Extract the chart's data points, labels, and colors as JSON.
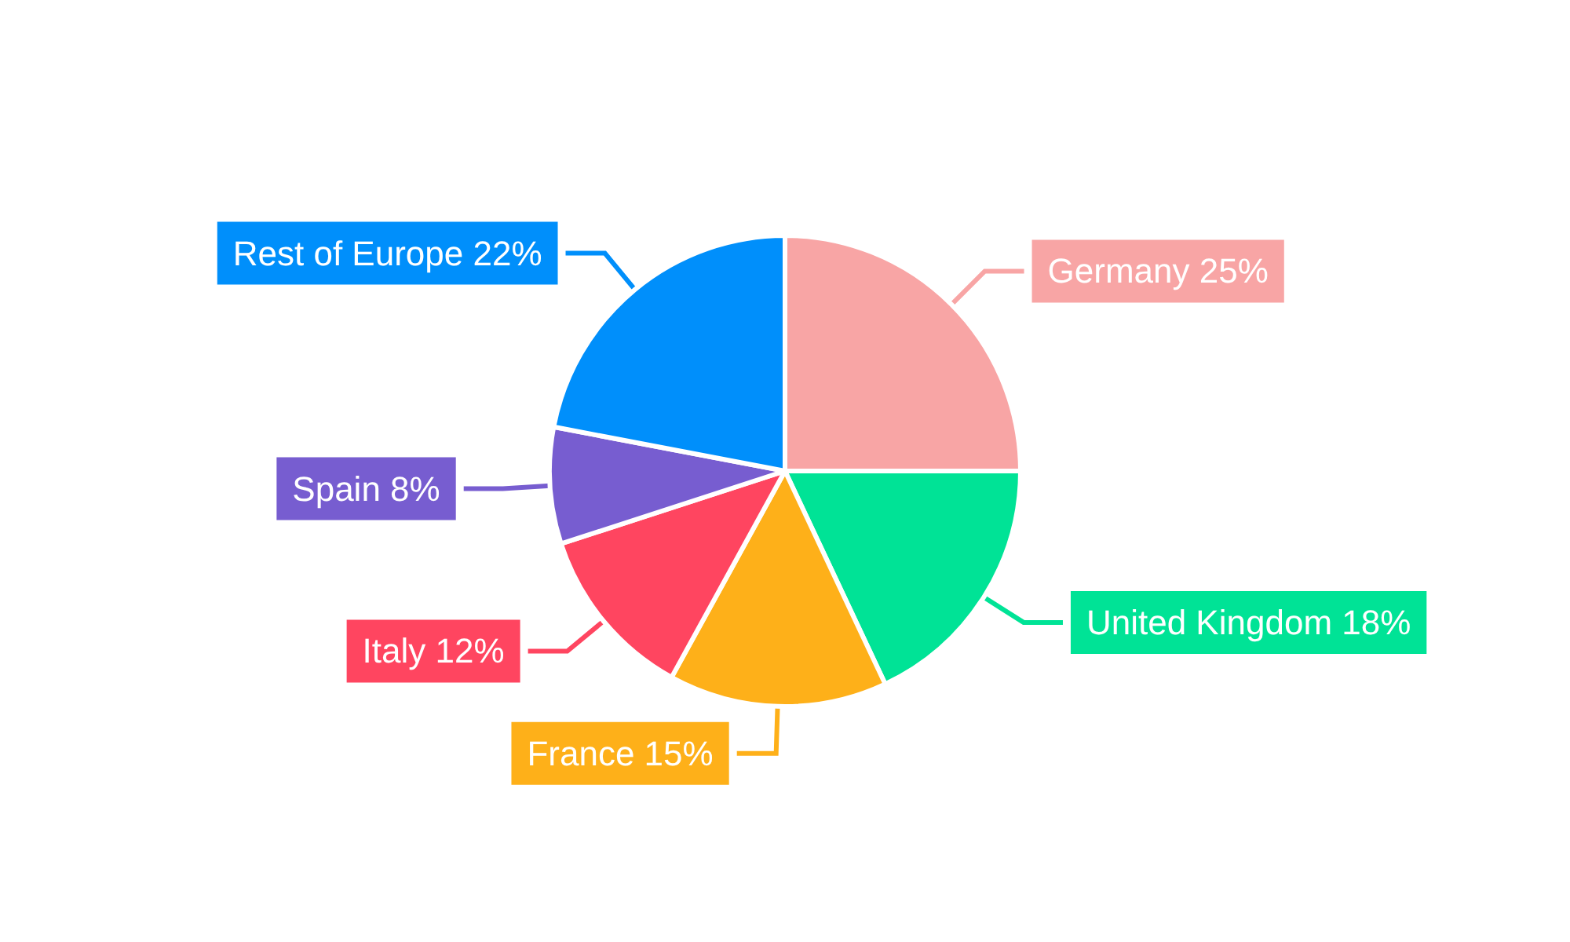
{
  "chart_data": {
    "type": "pie",
    "categories": [
      "Germany",
      "United Kingdom",
      "France",
      "Italy",
      "Spain",
      "Rest of Europe"
    ],
    "values": [
      25,
      18,
      15,
      12,
      8,
      22
    ],
    "value_labels": [
      "25%",
      "18%",
      "15%",
      "12%",
      "8%",
      "22%"
    ],
    "colors": [
      "#f8a5a5",
      "#00e396",
      "#feb019",
      "#ff4560",
      "#775dd0",
      "#008ffb"
    ],
    "legend": false
  }
}
